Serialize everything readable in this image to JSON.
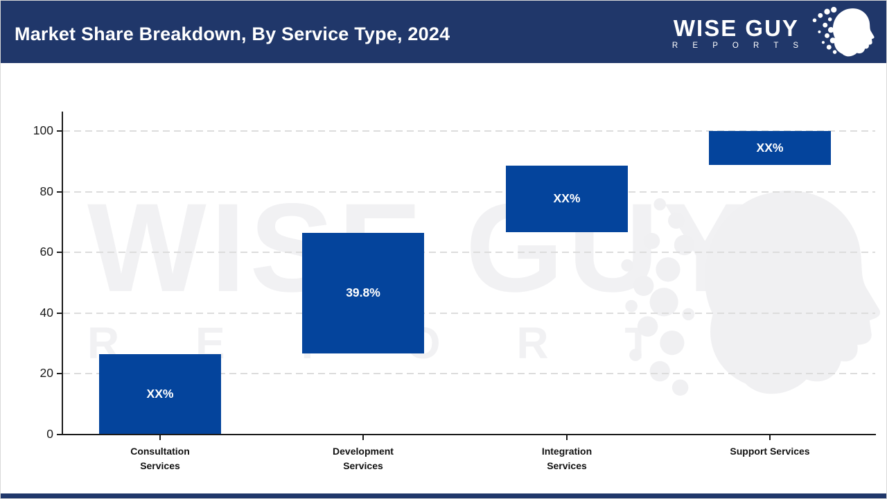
{
  "header": {
    "bg": "#20376A",
    "title": "Market Share Breakdown, By Service Type, 2024",
    "logo": {
      "name": "WISE GUY",
      "sub": "R E P O R T S"
    }
  },
  "footer": {
    "bg": "#20376A"
  },
  "watermark": {
    "line1": "WISE GUY",
    "line2": "R E P O R T S"
  },
  "chart_data": {
    "type": "bar",
    "subtype": "waterfall",
    "title": "Market Share Breakdown, By Service Type, 2024",
    "categories": [
      "Consultation Services",
      "Development Services",
      "Integration Services",
      "Support Services"
    ],
    "bars": [
      {
        "category_lines": [
          "Consultation",
          "Services"
        ],
        "start": 0,
        "end": 26.5,
        "label": "XX%"
      },
      {
        "category_lines": [
          "Development",
          "Services"
        ],
        "start": 26.7,
        "end": 66.5,
        "label": "39.8%"
      },
      {
        "category_lines": [
          "Integration",
          "Services"
        ],
        "start": 66.7,
        "end": 88.6,
        "label": "XX%"
      },
      {
        "category_lines": [
          "Support Services"
        ],
        "start": 88.8,
        "end": 100,
        "label": "XX%"
      }
    ],
    "bar_color": "#04449C",
    "bar_label_color": "#ffffff",
    "ylim": [
      0,
      100
    ],
    "yticks": [
      0,
      20,
      40,
      60,
      80,
      100
    ],
    "grid": "horizontal-dashed",
    "legend": "none",
    "xlabel": "",
    "ylabel": ""
  }
}
